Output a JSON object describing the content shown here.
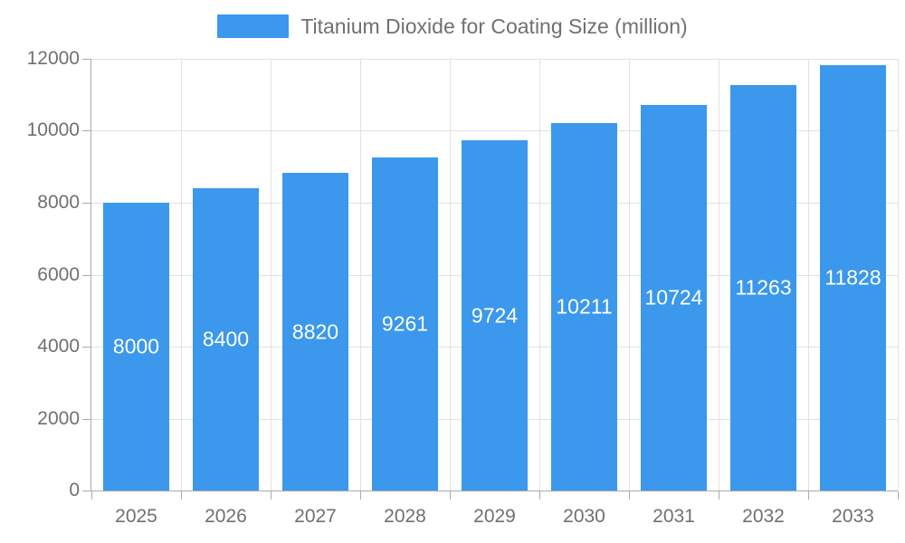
{
  "chart_data": {
    "type": "bar",
    "title": "Titanium Dioxide for Coating Size (million)",
    "legend_position": "top",
    "categories": [
      "2025",
      "2026",
      "2027",
      "2028",
      "2029",
      "2030",
      "2031",
      "2032",
      "2033"
    ],
    "series": [
      {
        "name": "Titanium Dioxide for Coating Size (million)",
        "values": [
          8000,
          8400,
          8820,
          9261,
          9724,
          10211,
          10724,
          11263,
          11828
        ]
      }
    ],
    "bar_value_labels_shown": true,
    "xlabel": "",
    "ylabel": "",
    "ylim": [
      0,
      12000
    ],
    "yticks": [
      0,
      2000,
      4000,
      6000,
      8000,
      10000,
      12000
    ],
    "grid": true,
    "colors": {
      "bar": "#3b98ec",
      "grid": "#e2e2e2",
      "axis": "#aaaaaa",
      "tick_text": "#707070",
      "bar_label_text": "#ffffff"
    }
  }
}
